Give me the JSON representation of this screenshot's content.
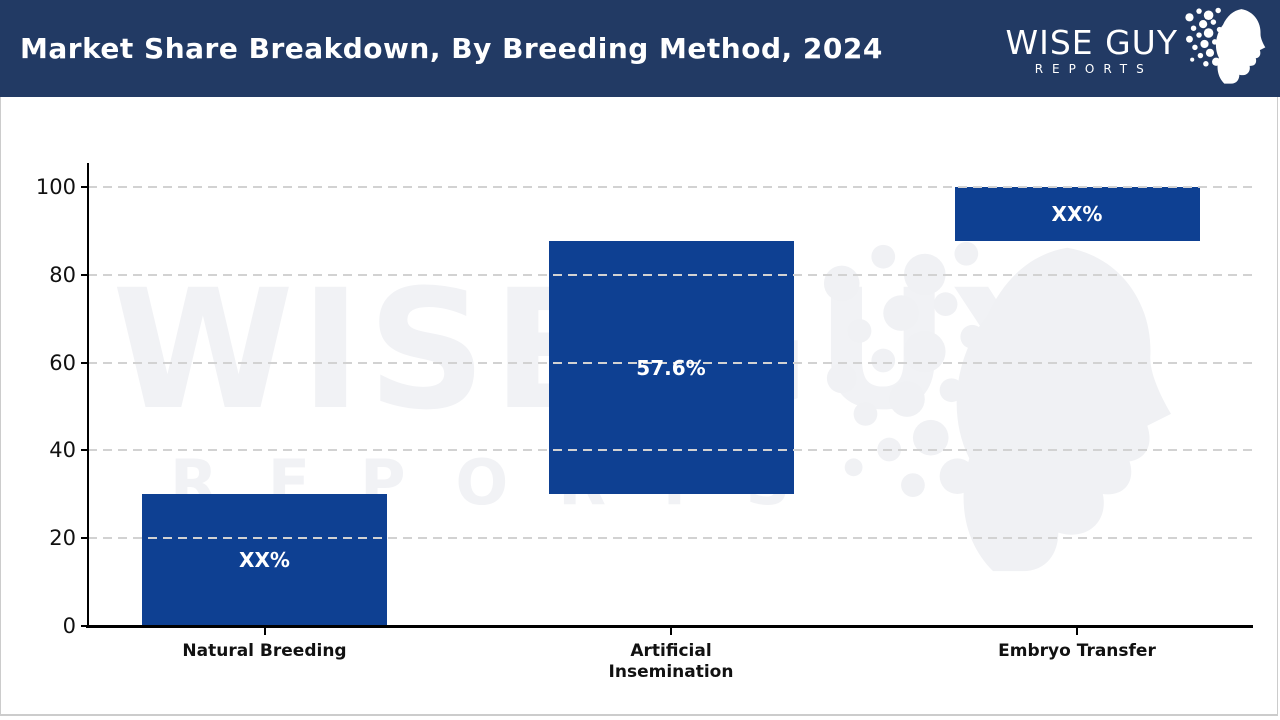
{
  "header": {
    "title": "Market Share Breakdown, By Breeding Method, 2024",
    "logo": {
      "name": "WISE GUY",
      "sub": "REPORTS"
    }
  },
  "watermark": {
    "name": "WISE GUY",
    "sub": "REPORTS"
  },
  "colors": {
    "header_bg": "#223a64",
    "bar_blue": "#0e4092",
    "grid_gray": "#d2d2d2",
    "watermark_gray": "#f1f2f5",
    "frame_border": "#cccccc",
    "axis_black": "#000000",
    "bar_label_white": "#ffffff"
  },
  "chart_data": {
    "type": "bar",
    "variant": "floating_stacked_percentage",
    "title": "Market Share Breakdown, By Breeding Method, 2024",
    "categories": [
      "Natural Breeding",
      "Artificial\nInsemination",
      "Embryo Transfer"
    ],
    "segments": [
      {
        "start": 0,
        "end": 30,
        "value_pct": 30,
        "label": "XX%"
      },
      {
        "start": 30,
        "end": 87.6,
        "value_pct": 57.6,
        "label": "57.6%"
      },
      {
        "start": 87.6,
        "end": 100,
        "value_pct": 12.4,
        "label": "XX%"
      }
    ],
    "yticks": [
      0,
      20,
      40,
      60,
      80,
      100
    ],
    "ylim": [
      0,
      100
    ],
    "grid": "horizontal-dashed",
    "legend": "none",
    "bar_color": "#0e4092",
    "label_color": "#ffffff"
  }
}
